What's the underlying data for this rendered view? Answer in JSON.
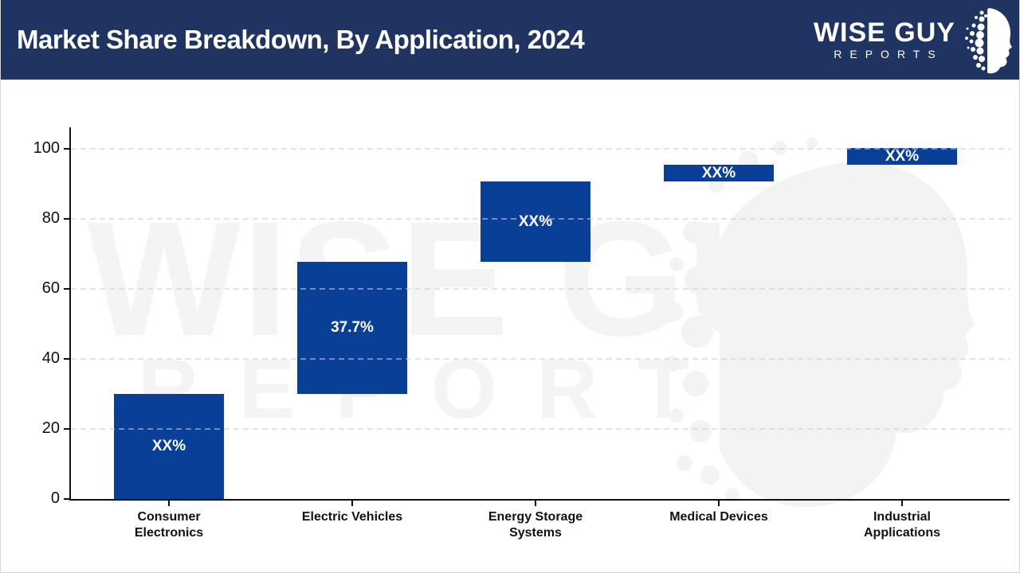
{
  "header": {
    "title": "Market Share Breakdown, By Application, 2024",
    "background_color": "#1f3460",
    "logo": {
      "line1": "WISE GUY",
      "line2": "REPORTS",
      "icon": "face-profile-dots-icon"
    }
  },
  "watermark": {
    "line1": "WISE GUY",
    "line2": "REPORTS",
    "icon": "face-profile-dots-watermark"
  },
  "chart_data": {
    "type": "bar",
    "subtype": "waterfall",
    "title": "Market Share Breakdown, By Application, 2024",
    "categories": [
      "Consumer Electronics",
      "Electric Vehicles",
      "Energy Storage Systems",
      "Medical Devices",
      "Industrial Applications"
    ],
    "category_lines": [
      [
        "Consumer",
        "Electronics"
      ],
      [
        "Electric Vehicles"
      ],
      [
        "Energy Storage",
        "Systems"
      ],
      [
        "Medical Devices"
      ],
      [
        "Industrial",
        "Applications"
      ]
    ],
    "segments": [
      {
        "category": "Consumer Electronics",
        "start": 0,
        "end": 30,
        "label": "XX%"
      },
      {
        "category": "Electric Vehicles",
        "start": 30,
        "end": 67.7,
        "label": "37.7%"
      },
      {
        "category": "Energy Storage Systems",
        "start": 67.7,
        "end": 90.7,
        "label": "XX%"
      },
      {
        "category": "Medical Devices",
        "start": 90.7,
        "end": 95.5,
        "label": "XX%"
      },
      {
        "category": "Industrial Applications",
        "start": 95.5,
        "end": 100.2,
        "label": "XX%"
      }
    ],
    "yticks": [
      0,
      20,
      40,
      60,
      80,
      100
    ],
    "ylim": [
      0,
      105
    ],
    "xlabel": "",
    "ylabel": "",
    "bar_color": "#0a3f97",
    "bar_label_color": "#ffffff",
    "gridline_color": "#d9d9d9",
    "grid_dashed": true,
    "legend": null
  }
}
